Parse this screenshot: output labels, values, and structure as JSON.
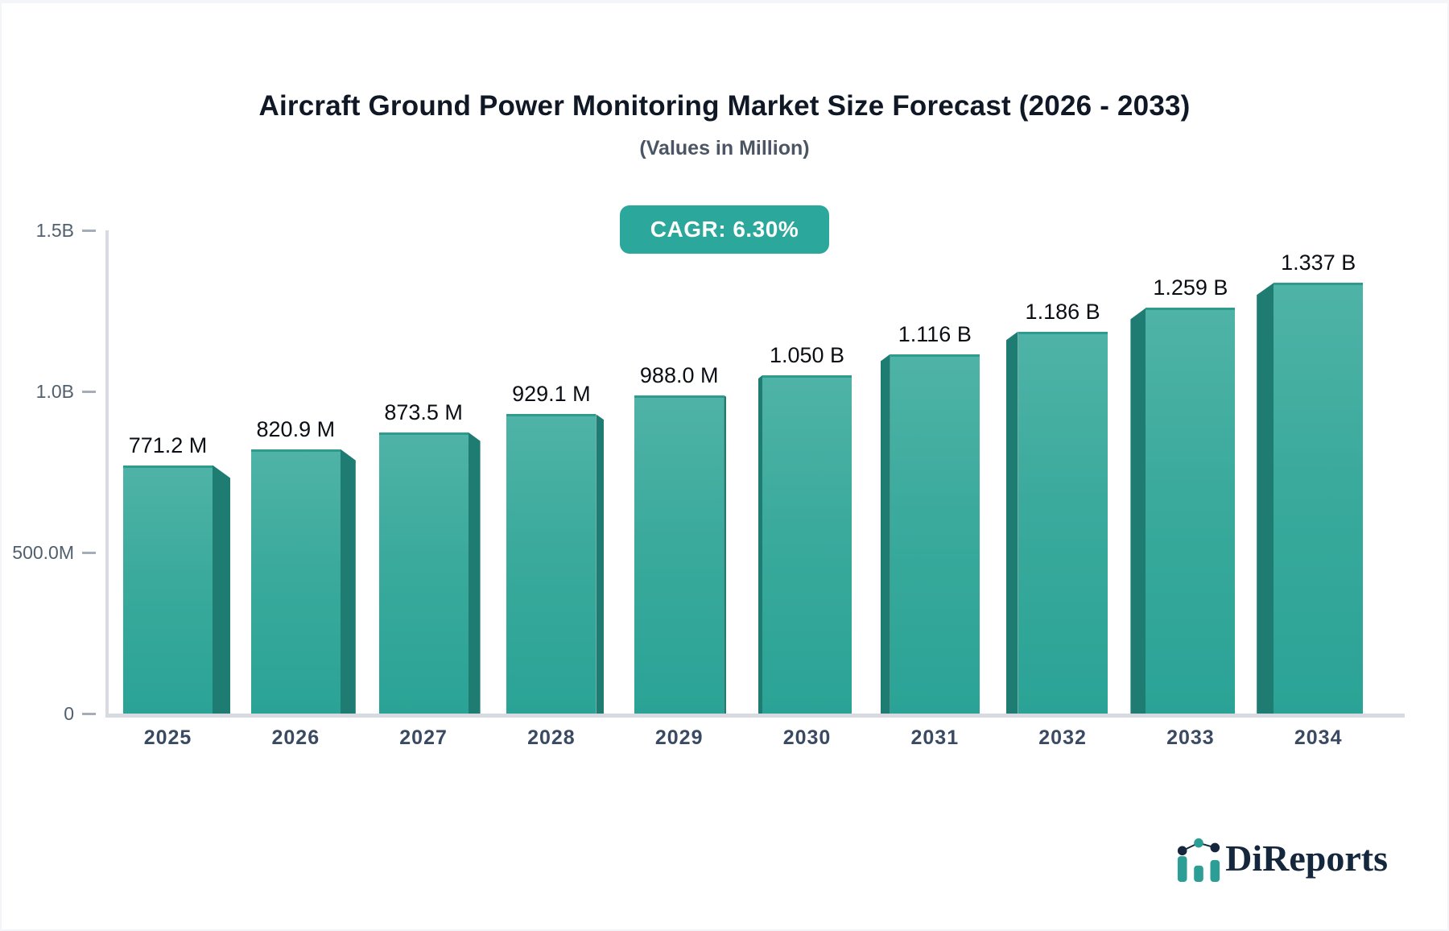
{
  "header": {
    "title": "Aircraft Ground Power Monitoring Market Size Forecast (2026 - 2033)",
    "subtitle": "(Values in Million)"
  },
  "badge": {
    "label": "CAGR: 6.30%",
    "background": "#2ba79b"
  },
  "chart_data": {
    "type": "bar",
    "title": "Aircraft Ground Power Monitoring Market Size Forecast (2026 - 2033)",
    "subtitle": "(Values in Million)",
    "xlabel": "",
    "ylabel": "",
    "categories": [
      "2025",
      "2026",
      "2027",
      "2028",
      "2029",
      "2030",
      "2031",
      "2032",
      "2033",
      "2034"
    ],
    "values_millions": [
      771.2,
      820.9,
      873.5,
      929.1,
      988.0,
      1050,
      1116,
      1186,
      1259,
      1337
    ],
    "value_labels": [
      "771.2 M",
      "820.9 M",
      "873.5 M",
      "929.1 M",
      "988.0 M",
      "1.050 B",
      "1.116 B",
      "1.186 B",
      "1.259 B",
      "1.337 B"
    ],
    "y_axis": {
      "min": 0,
      "max": 1500,
      "unit": "millions",
      "ticks": [
        {
          "label": "1.5B",
          "value": 1500
        },
        {
          "label": "1.0B",
          "value": 1000
        },
        {
          "label": "500.0M",
          "value": 500
        },
        {
          "label": "0",
          "value": 0
        }
      ]
    },
    "legend": false,
    "grid": false,
    "style": {
      "bar_top_color": "#4fb3a7",
      "bar_bottom_color": "#2aa396",
      "bar_side_color": "#1f7c72",
      "axis_color": "#d7dae0"
    }
  },
  "logo": {
    "text": "DiReports",
    "icon": "bar-line-chart-icon",
    "text_color": "#15273d",
    "accent_color": "#2d9e96"
  }
}
